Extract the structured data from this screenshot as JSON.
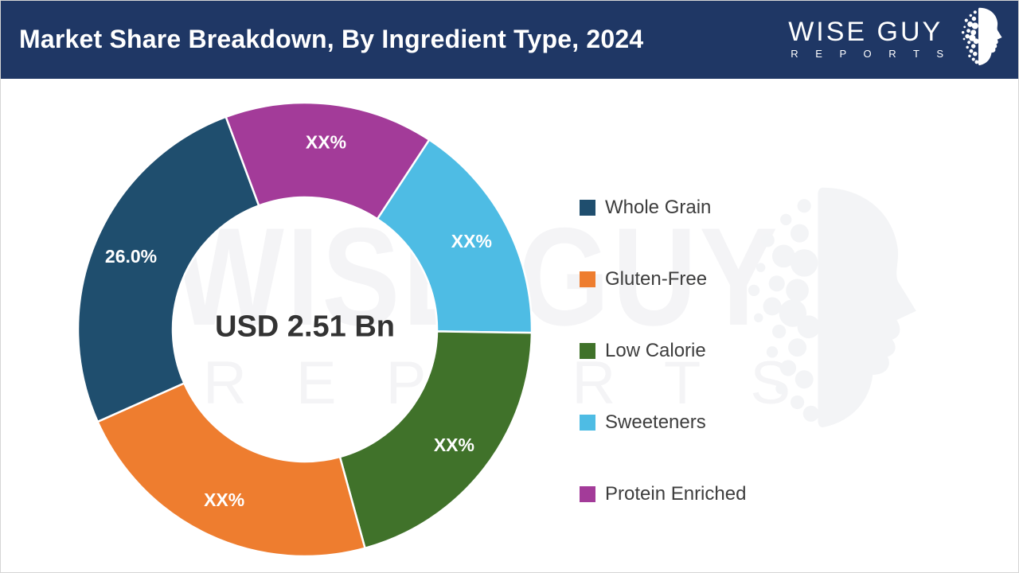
{
  "header": {
    "title": "Market Share Breakdown, By Ingredient Type, 2024",
    "background": "#1f3765"
  },
  "logo": {
    "line1": "WISE GUY",
    "line2": "R E P O R T S"
  },
  "watermark": {
    "line1": "WISE GUY",
    "line2": "REPORTS"
  },
  "chart_data": {
    "type": "pie",
    "subtype": "donut",
    "title": "Market Share Breakdown, By Ingredient Type, 2024",
    "center_label": "USD 2.51 Bn",
    "units": "percent share",
    "start_angle_deg": -20.4,
    "legend_position": "right",
    "segments_draw_order_clockwise": [
      {
        "name": "Protein Enriched",
        "value": 14.9,
        "label": "XX%",
        "color": "#a33b99"
      },
      {
        "name": "Sweeteners",
        "value": 16.0,
        "label": "XX%",
        "color": "#4ebce4"
      },
      {
        "name": "Low Calorie",
        "value": 20.5,
        "label": "XX%",
        "color": "#40722a"
      },
      {
        "name": "Gluten-Free",
        "value": 22.6,
        "label": "XX%",
        "color": "#ee7d2f"
      },
      {
        "name": "Whole Grain",
        "value": 26.0,
        "label": "26.0%",
        "color": "#1f4e6e"
      }
    ]
  },
  "legend": {
    "items": [
      {
        "label": "Whole Grain",
        "color": "#1f4e6e"
      },
      {
        "label": "Gluten-Free",
        "color": "#ee7d2f"
      },
      {
        "label": "Low Calorie",
        "color": "#40722a"
      },
      {
        "label": "Sweeteners",
        "color": "#4ebce4"
      },
      {
        "label": "Protein Enriched",
        "color": "#a33b99"
      }
    ]
  }
}
